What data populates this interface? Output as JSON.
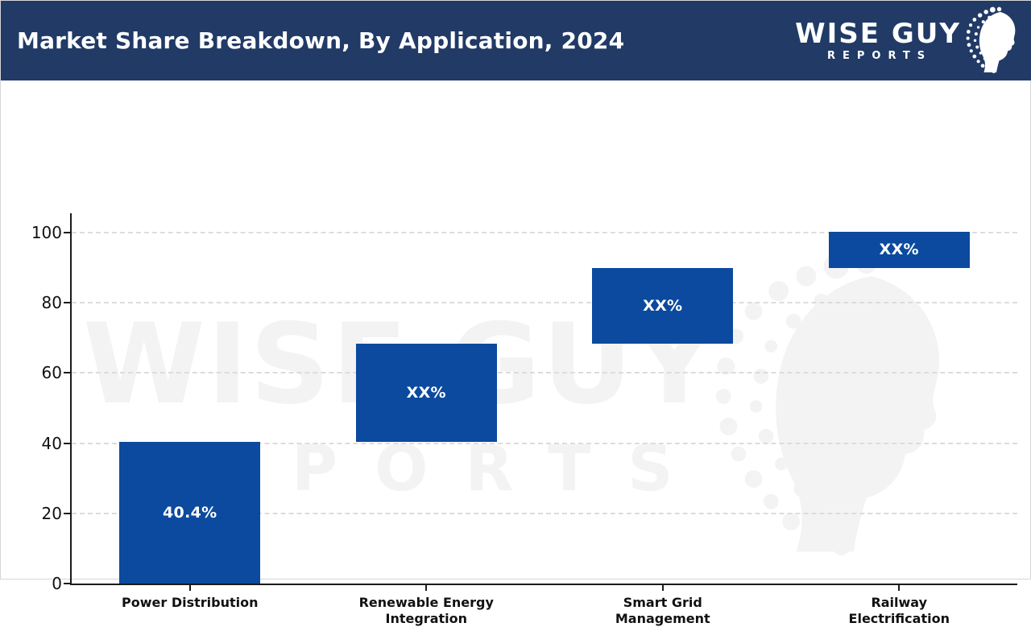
{
  "header": {
    "title": "Market Share Breakdown, By Application, 2024",
    "bg_color": "#213a66",
    "logo": {
      "brand_line1": "WISE GUY",
      "brand_line2": "REPORTS",
      "head_icon": "dotted-head-profile-icon"
    }
  },
  "watermark": {
    "line1": "WISE GUY",
    "line2": "REPORTS",
    "color": "#f3f3f3",
    "head_icon": "dotted-head-profile-icon"
  },
  "chart_data": {
    "type": "bar",
    "subtype": "waterfall",
    "title": "Market Share Breakdown, By Application, 2024",
    "categories": [
      "Power Distribution",
      "Renewable Energy\nIntegration",
      "Smart Grid\nManagement",
      "Railway\nElectrification"
    ],
    "segments": [
      {
        "category": "Power Distribution",
        "start": 0,
        "end": 40.4,
        "label": "40.4%"
      },
      {
        "category": "Renewable Energy Integration",
        "start": 40.4,
        "end": 68.4,
        "label": "XX%"
      },
      {
        "category": "Smart Grid Management",
        "start": 68.4,
        "end": 89.9,
        "label": "XX%"
      },
      {
        "category": "Railway Electrification",
        "start": 89.9,
        "end": 100.3,
        "label": "XX%"
      }
    ],
    "yticks": [
      0,
      20,
      40,
      60,
      80,
      100
    ],
    "ylim": [
      0,
      105.5
    ],
    "xlabel": "",
    "ylabel": "",
    "legend": "none",
    "grid": "horizontal-dashed",
    "bar_color": "#0b4a9e",
    "grid_color": "#dcdcdc",
    "axis_color": "#1a1a1a",
    "value_label_color": "#ffffff"
  }
}
